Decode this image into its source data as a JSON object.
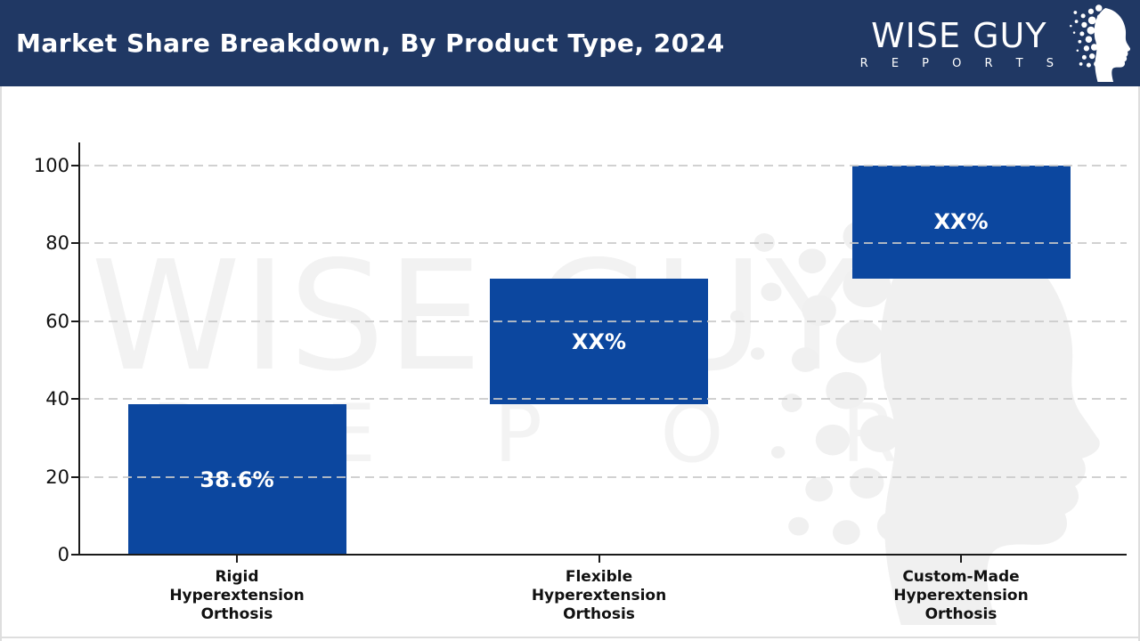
{
  "header": {
    "title": "Market Share Breakdown, By Product Type, 2024",
    "bg_color": "#203864",
    "logo": {
      "wordmark": "WISE GUY",
      "sub": "R E P O R T S"
    }
  },
  "watermark": {
    "word1": "WISE GUY",
    "word2": "R E P O R T S"
  },
  "chart_data": {
    "type": "bar",
    "variant": "floating-segment-waterfall",
    "title": "Market Share Breakdown, By Product Type, 2024",
    "categories": [
      "Rigid Hyperextension Orthosis",
      "Flexible Hyperextension Orthosis",
      "Custom-Made Hyperextension Orthosis"
    ],
    "category_label_lines": [
      [
        "Rigid",
        "Hyperextension",
        "Orthosis"
      ],
      [
        "Flexible",
        "Hyperextension",
        "Orthosis"
      ],
      [
        "Custom-Made",
        "Hyperextension",
        "Orthosis"
      ]
    ],
    "segments": [
      {
        "category": "Rigid Hyperextension Orthosis",
        "start": 0,
        "end": 38.6,
        "label": "38.6%"
      },
      {
        "category": "Flexible Hyperextension Orthosis",
        "start": 38.6,
        "end": 71,
        "label": "XX%"
      },
      {
        "category": "Custom-Made Hyperextension Orthosis",
        "start": 71,
        "end": 100,
        "label": "XX%"
      }
    ],
    "xlabel": "",
    "ylabel": "",
    "yticks": [
      0,
      20,
      40,
      60,
      80,
      100
    ],
    "ylim": [
      0,
      105
    ],
    "grid": "dashed horizontal, drawn over bars",
    "legend": "none",
    "bar_color": "#0c479f",
    "bar_label_color": "#ffffff",
    "axis_color": "#1a1a1a",
    "gridline_color": "#c9c9c9",
    "watermark_color": "#f2f2f2"
  }
}
